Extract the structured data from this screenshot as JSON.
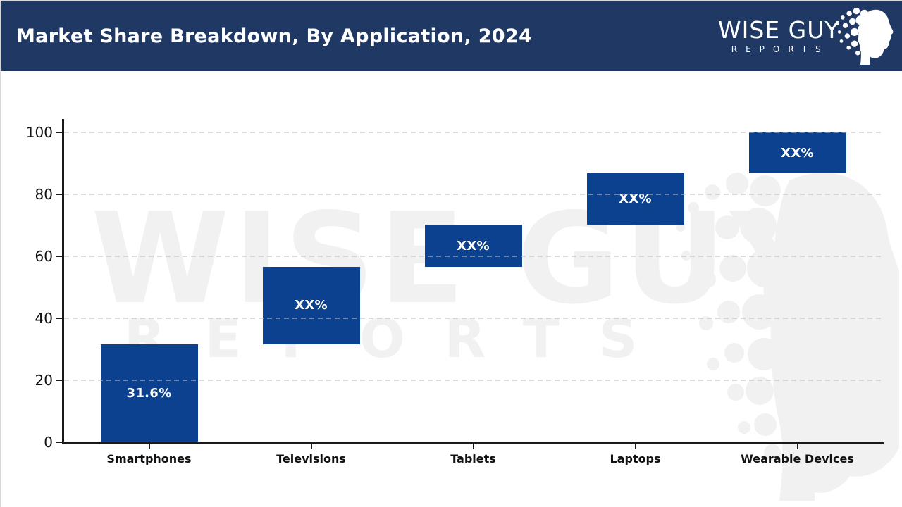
{
  "header": {
    "title": "Market Share Breakdown, By Application, 2024",
    "bg_color": "#1F3864",
    "logo": {
      "brand": "WISE GUY",
      "sub": "REPORTS"
    }
  },
  "watermark": {
    "line1": "WISE GUY",
    "line2": "REPORTS"
  },
  "chart_data": {
    "type": "bar",
    "subtype": "waterfall",
    "title": "Market Share Breakdown, By Application, 2024",
    "categories": [
      "Smartphones",
      "Televisions",
      "Tablets",
      "Laptops",
      "Wearable Devices"
    ],
    "series": [
      {
        "name": "Market Share (%)",
        "segments": [
          {
            "category": "Smartphones",
            "start": 0,
            "end": 31.6,
            "label": "31.6%"
          },
          {
            "category": "Televisions",
            "start": 31.6,
            "end": 56.6,
            "label": "XX%"
          },
          {
            "category": "Tablets",
            "start": 56.6,
            "end": 70.2,
            "label": "XX%"
          },
          {
            "category": "Laptops",
            "start": 70.2,
            "end": 86.8,
            "label": "XX%"
          },
          {
            "category": "Wearable Devices",
            "start": 86.8,
            "end": 100,
            "label": "XX%"
          }
        ]
      }
    ],
    "bar_labels": [
      "31.6%",
      "XX%",
      "XX%",
      "XX%",
      "XX%"
    ],
    "xlabel": "",
    "ylabel": "",
    "ylim": [
      0,
      100
    ],
    "yticks": [
      0,
      20,
      40,
      60,
      80,
      100
    ],
    "grid": "horizontal-dashed",
    "legend": "none",
    "bar_color": "#0B418F"
  }
}
